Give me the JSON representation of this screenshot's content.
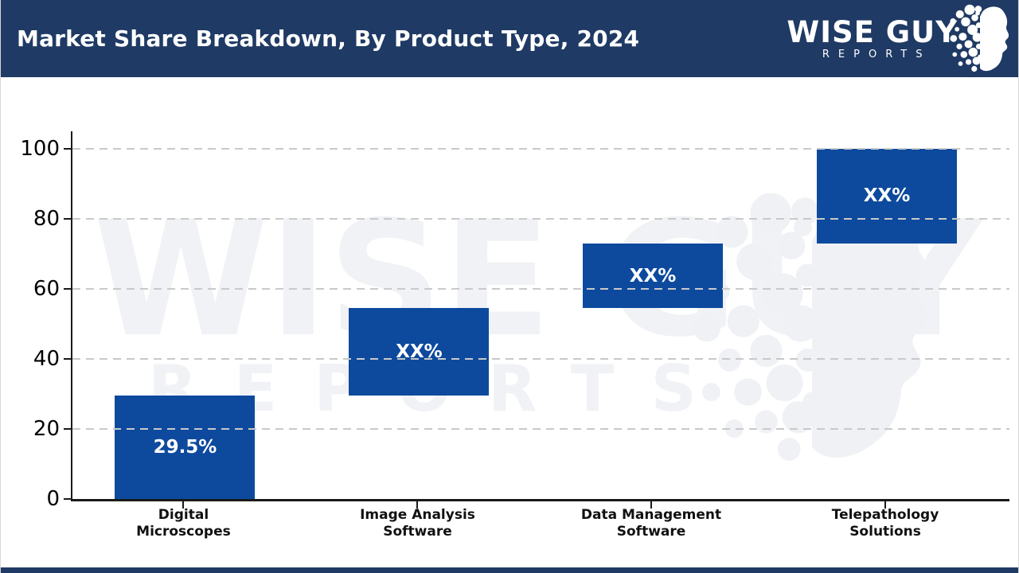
{
  "header": {
    "title": "Market Share Breakdown, By Product Type, 2024",
    "logo": {
      "line1": "WISE GUY",
      "line2": "REPORTS"
    }
  },
  "watermark": {
    "line1": "WISE GUY",
    "line2": "REPORTS"
  },
  "chart_data": {
    "type": "bar",
    "subtype": "waterfall",
    "title": "Market Share Breakdown, By Product Type, 2024",
    "xlabel": "",
    "ylabel": "",
    "categories": [
      "Digital Microscopes",
      "Image Analysis Software",
      "Data Management Software",
      "Telepathology Solutions"
    ],
    "category_label_lines": [
      [
        "Digital",
        "Microscopes"
      ],
      [
        "Image Analysis",
        "Software"
      ],
      [
        "Data Management",
        "Software"
      ],
      [
        "Telepathology",
        "Solutions"
      ]
    ],
    "bars": [
      {
        "category": "Digital Microscopes",
        "start": 0,
        "end": 29.5,
        "value_label": "29.5%"
      },
      {
        "category": "Image Analysis Software",
        "start": 29.5,
        "end": 54.5,
        "value_label": "XX%"
      },
      {
        "category": "Data Management Software",
        "start": 54.5,
        "end": 73,
        "value_label": "XX%"
      },
      {
        "category": "Telepathology Solutions",
        "start": 73,
        "end": 100,
        "value_label": "XX%"
      }
    ],
    "yticks": [
      0,
      20,
      40,
      60,
      80,
      100
    ],
    "ylim": [
      0,
      105
    ],
    "grid": "horizontal-dashed",
    "legend": false,
    "bar_color": "#0d4a9e"
  },
  "colors": {
    "header_background": "#1f3a64",
    "footer_background": "#1f3a64",
    "bar": "#0d4a9e",
    "bar_label_text": "#ffffff",
    "gridline": "#c9c9c9",
    "axis": "#1a1a1a",
    "watermark": "#f0f2f5",
    "title_text": "#ffffff",
    "tick_text": "#000000"
  }
}
